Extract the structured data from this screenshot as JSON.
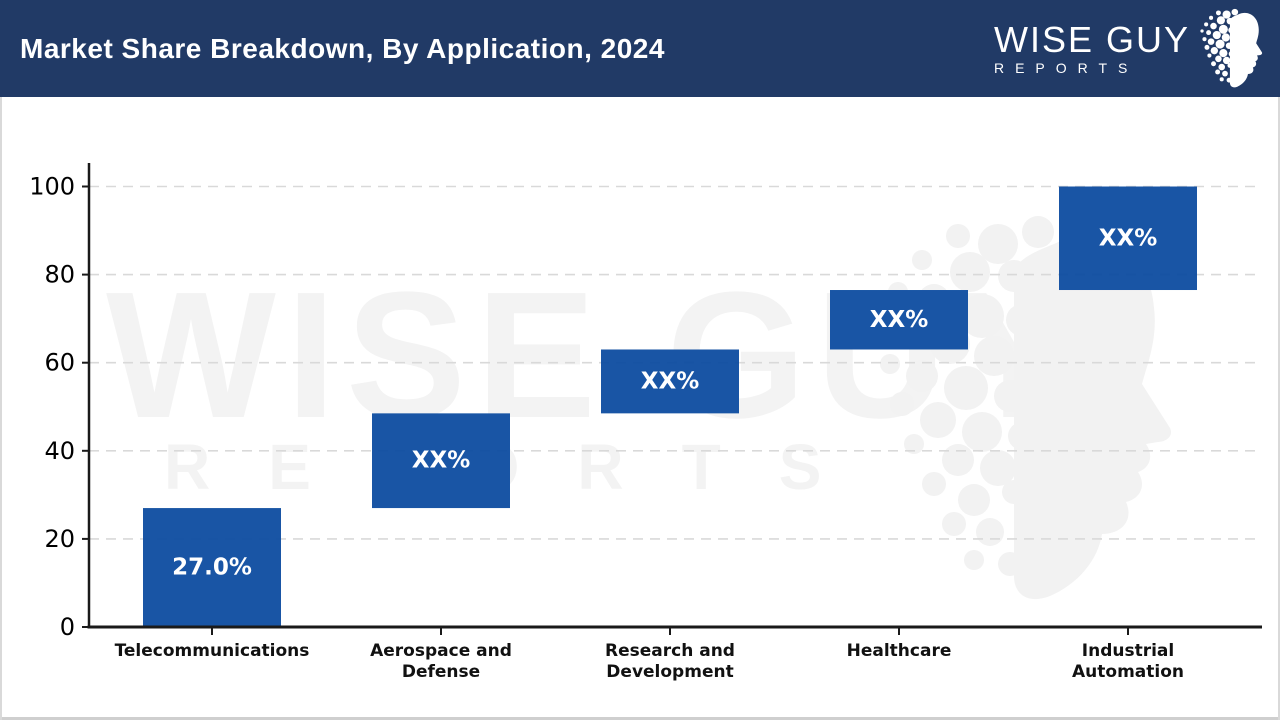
{
  "header": {
    "title": "Market Share Breakdown, By Application, 2024",
    "brand": {
      "line1": "WISE GUY",
      "line2": "REPORTS"
    },
    "bg_color": "#213A66"
  },
  "watermark": {
    "line1": "WISE GUY",
    "line2": "REPORTS"
  },
  "chart_data": {
    "type": "bar",
    "subtype": "waterfall-floating-segments",
    "title": "Market Share Breakdown, By Application, 2024",
    "xlabel": "",
    "ylabel": "",
    "ylim": [
      0,
      105
    ],
    "yticks": [
      0,
      20,
      40,
      60,
      80,
      100
    ],
    "grid": "horizontal-dashed",
    "bar_color": "#0B4A9F",
    "label_color": "#FFFFFF",
    "axis_color": "#1a1a1a",
    "grid_color": "#d9d9d9",
    "categories": [
      "Telecommunications",
      "Aerospace and Defense",
      "Research and Development",
      "Healthcare",
      "Industrial Automation"
    ],
    "category_label_lines": [
      [
        "Telecommunications"
      ],
      [
        "Aerospace and",
        "Defense"
      ],
      [
        "Research and",
        "Development"
      ],
      [
        "Healthcare"
      ],
      [
        "Industrial",
        "Automation"
      ]
    ],
    "bars": [
      {
        "category": "Telecommunications",
        "label": "27.0%",
        "start": 0,
        "end": 27,
        "value": 27.0
      },
      {
        "category": "Aerospace and Defense",
        "label": "XX%",
        "start": 27,
        "end": 48.5,
        "value": 21.5
      },
      {
        "category": "Research and Development",
        "label": "XX%",
        "start": 48.5,
        "end": 63,
        "value": 14.5
      },
      {
        "category": "Healthcare",
        "label": "XX%",
        "start": 63,
        "end": 76.5,
        "value": 13.5
      },
      {
        "category": "Industrial Automation",
        "label": "XX%",
        "start": 76.5,
        "end": 100,
        "value": 23.5
      }
    ]
  }
}
